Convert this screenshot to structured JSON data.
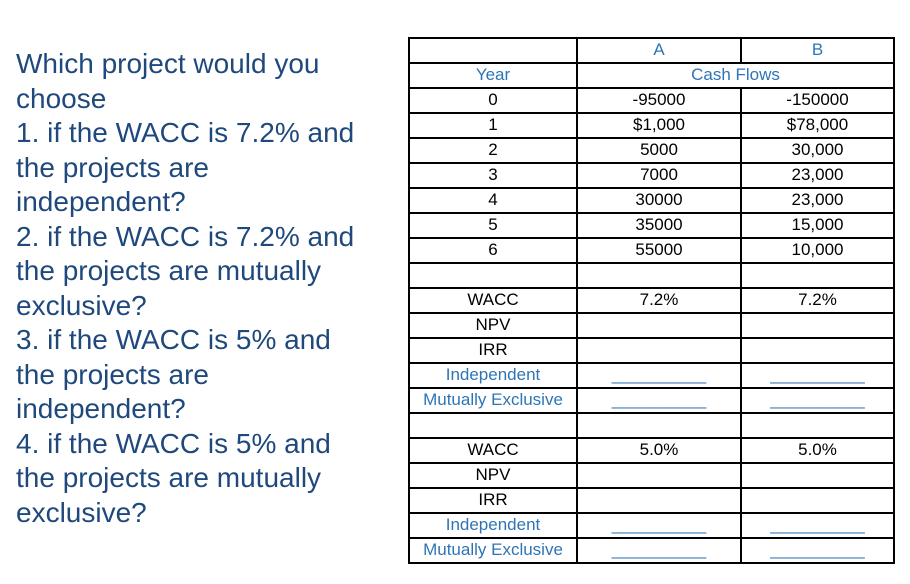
{
  "colors": {
    "question_text": "#1F497D",
    "table_accent": "#2E75B6",
    "table_text": "#000000",
    "table_border": "#000000"
  },
  "question": {
    "lines": [
      "Which project would you",
      "choose",
      "1. if the WACC is 7.2% and",
      "the projects are",
      "independent?",
      "2. if the WACC is 7.2% and",
      "the projects are mutually",
      "exclusive?",
      "3. if the WACC is 5% and",
      "the projects are",
      "independent?",
      "4. if the WACC is 5% and",
      "the projects are mutually",
      "exclusive?"
    ]
  },
  "table": {
    "rows": [
      {
        "name": "row-project-headers",
        "cells": [
          {
            "text": "",
            "name": "corner-cell"
          },
          {
            "text": "A",
            "accent": true,
            "name": "project-a-header"
          },
          {
            "text": "B",
            "accent": true,
            "name": "project-b-header"
          }
        ]
      },
      {
        "name": "row-column-headers",
        "cells": [
          {
            "text": "Year",
            "accent": true,
            "name": "year-header"
          },
          {
            "text": "Cash Flows",
            "accent": true,
            "colspan": 2,
            "name": "cash-flows-header"
          }
        ]
      },
      {
        "name": "row-year-0",
        "cells": [
          {
            "text": "0",
            "name": "year-cell"
          },
          {
            "text": "-95000",
            "name": "cashflow-a-cell"
          },
          {
            "text": "-150000",
            "name": "cashflow-b-cell"
          }
        ]
      },
      {
        "name": "row-year-1",
        "cells": [
          {
            "text": "1",
            "name": "year-cell"
          },
          {
            "text": "$1,000",
            "name": "cashflow-a-cell"
          },
          {
            "text": "$78,000",
            "name": "cashflow-b-cell"
          }
        ]
      },
      {
        "name": "row-year-2",
        "cells": [
          {
            "text": "2",
            "name": "year-cell"
          },
          {
            "text": "5000",
            "name": "cashflow-a-cell"
          },
          {
            "text": "30,000",
            "name": "cashflow-b-cell"
          }
        ]
      },
      {
        "name": "row-year-3",
        "cells": [
          {
            "text": "3",
            "name": "year-cell"
          },
          {
            "text": "7000",
            "name": "cashflow-a-cell"
          },
          {
            "text": "23,000",
            "name": "cashflow-b-cell"
          }
        ]
      },
      {
        "name": "row-year-4",
        "cells": [
          {
            "text": "4",
            "name": "year-cell"
          },
          {
            "text": "30000",
            "name": "cashflow-a-cell"
          },
          {
            "text": "23,000",
            "name": "cashflow-b-cell"
          }
        ]
      },
      {
        "name": "row-year-5",
        "cells": [
          {
            "text": "5",
            "name": "year-cell"
          },
          {
            "text": "35000",
            "name": "cashflow-a-cell"
          },
          {
            "text": "15,000",
            "name": "cashflow-b-cell"
          }
        ]
      },
      {
        "name": "row-year-6",
        "cells": [
          {
            "text": "6",
            "name": "year-cell"
          },
          {
            "text": "55000",
            "name": "cashflow-a-cell"
          },
          {
            "text": "10,000",
            "name": "cashflow-b-cell"
          }
        ]
      },
      {
        "name": "row-spacer",
        "cells": [
          {
            "text": "",
            "name": "spacer-cell"
          },
          {
            "text": "",
            "name": "spacer-cell"
          },
          {
            "text": "",
            "name": "spacer-cell"
          }
        ]
      },
      {
        "name": "row-wacc-72",
        "cells": [
          {
            "text": "WACC",
            "name": "wacc-label"
          },
          {
            "text": "7.2%",
            "name": "wacc-a-value"
          },
          {
            "text": "7.2%",
            "name": "wacc-b-value"
          }
        ]
      },
      {
        "name": "row-npv-72",
        "cells": [
          {
            "text": "NPV",
            "name": "npv-label"
          },
          {
            "text": "",
            "name": "npv-a-value"
          },
          {
            "text": "",
            "name": "npv-b-value"
          }
        ]
      },
      {
        "name": "row-irr-72",
        "cells": [
          {
            "text": "IRR",
            "name": "irr-label"
          },
          {
            "text": "",
            "name": "irr-a-value"
          },
          {
            "text": "",
            "name": "irr-b-value"
          }
        ]
      },
      {
        "name": "row-independent-72",
        "cells": [
          {
            "text": "Independent",
            "accent": true,
            "name": "independent-label"
          },
          {
            "text": "__________",
            "accent": true,
            "name": "independent-a-blank"
          },
          {
            "text": "__________",
            "accent": true,
            "name": "independent-b-blank"
          }
        ]
      },
      {
        "name": "row-mutually-exclusive-72",
        "cells": [
          {
            "text": "Mutually Exclusive",
            "accent": true,
            "name": "mutually-exclusive-label"
          },
          {
            "text": "__________",
            "accent": true,
            "name": "mutually-exclusive-a-blank"
          },
          {
            "text": "__________",
            "accent": true,
            "name": "mutually-exclusive-b-blank"
          }
        ]
      },
      {
        "name": "row-spacer",
        "cells": [
          {
            "text": "",
            "name": "spacer-cell"
          },
          {
            "text": "",
            "name": "spacer-cell"
          },
          {
            "text": "",
            "name": "spacer-cell"
          }
        ]
      },
      {
        "name": "row-wacc-50",
        "cells": [
          {
            "text": "WACC",
            "name": "wacc-label"
          },
          {
            "text": "5.0%",
            "name": "wacc-a-value"
          },
          {
            "text": "5.0%",
            "name": "wacc-b-value"
          }
        ]
      },
      {
        "name": "row-npv-50",
        "cells": [
          {
            "text": "NPV",
            "name": "npv-label"
          },
          {
            "text": "",
            "name": "npv-a-value"
          },
          {
            "text": "",
            "name": "npv-b-value"
          }
        ]
      },
      {
        "name": "row-irr-50",
        "cells": [
          {
            "text": "IRR",
            "name": "irr-label"
          },
          {
            "text": "",
            "name": "irr-a-value"
          },
          {
            "text": "",
            "name": "irr-b-value"
          }
        ]
      },
      {
        "name": "row-independent-50",
        "cells": [
          {
            "text": "Independent",
            "accent": true,
            "name": "independent-label"
          },
          {
            "text": "__________",
            "accent": true,
            "name": "independent-a-blank"
          },
          {
            "text": "__________",
            "accent": true,
            "name": "independent-b-blank"
          }
        ]
      },
      {
        "name": "row-mutually-exclusive-50",
        "cells": [
          {
            "text": "Mutually Exclusive",
            "accent": true,
            "name": "mutually-exclusive-label"
          },
          {
            "text": "__________",
            "accent": true,
            "name": "mutually-exclusive-a-blank"
          },
          {
            "text": "__________",
            "accent": true,
            "name": "mutually-exclusive-b-blank"
          }
        ]
      }
    ]
  }
}
